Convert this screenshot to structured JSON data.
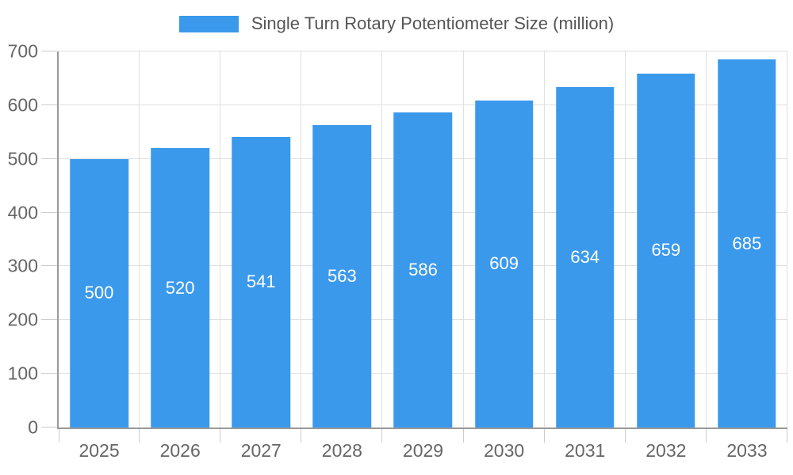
{
  "legend": {
    "label": "Single Turn Rotary Potentiometer Size (million)"
  },
  "colors": {
    "background": "#FFFFFF",
    "bar": "#3B99EC",
    "bar_label": "#FFFFFF",
    "axis": "#999999",
    "grid": "#E0E0E0",
    "tick": "#CCCCCC",
    "axis_text": "#666666",
    "legend_text": "#555555"
  },
  "chart_data": {
    "type": "bar",
    "title": "Single Turn Rotary Potentiometer Size (million)",
    "categories": [
      "2025",
      "2026",
      "2027",
      "2028",
      "2029",
      "2030",
      "2031",
      "2032",
      "2033"
    ],
    "values": [
      500,
      520,
      541,
      563,
      586,
      609,
      634,
      659,
      685
    ],
    "xlabel": "",
    "ylabel": "",
    "ylim": [
      0,
      700
    ],
    "yticks": [
      0,
      100,
      200,
      300,
      400,
      500,
      600,
      700
    ],
    "grid": true,
    "legend_position": "top",
    "bar_label_position": "inside-center"
  }
}
